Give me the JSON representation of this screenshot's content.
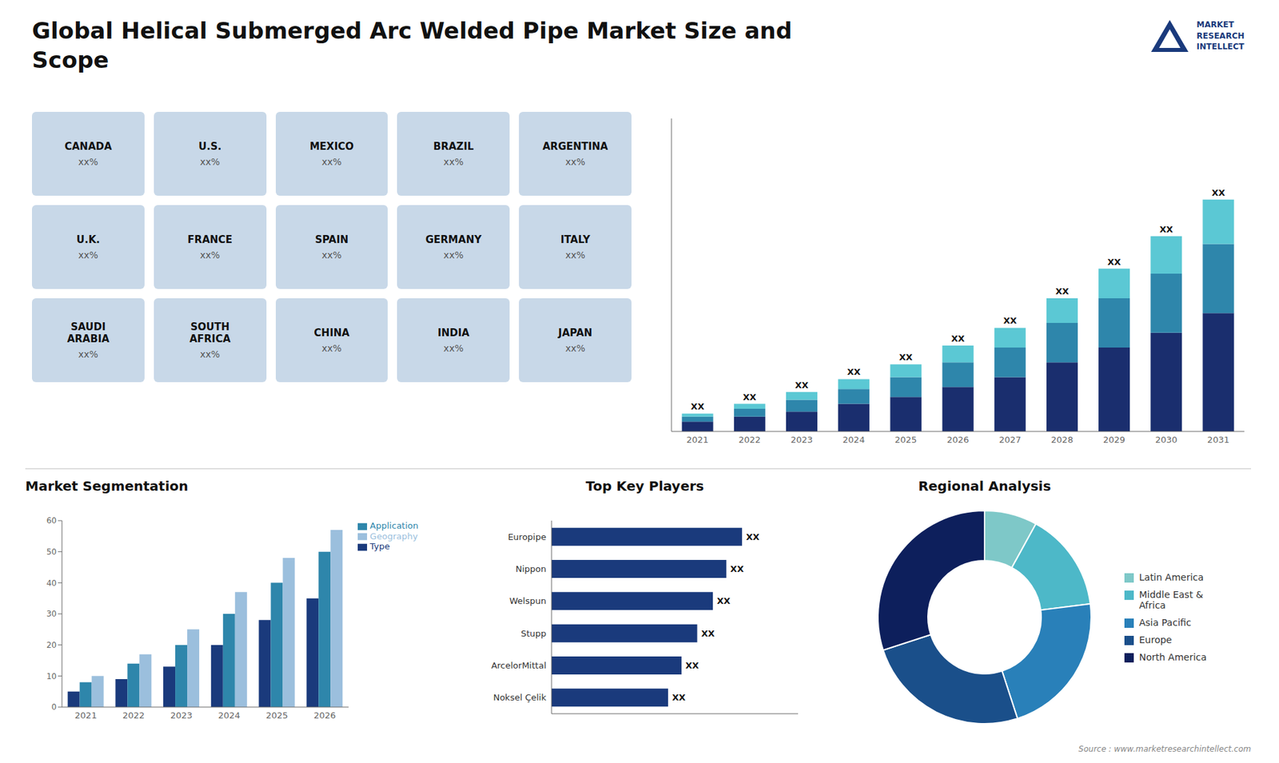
{
  "chart_data": [
    {
      "type": "map",
      "title": "Global Helical Submerged Arc Welded Pipe Market Size and\nScope",
      "categories": [
        "CANADA",
        "U.S.",
        "MEXICO",
        "BRAZIL",
        "ARGENTINA",
        "U.K.",
        "FRANCE",
        "SPAIN",
        "GERMANY",
        "ITALY",
        "SAUDI\nARABIA",
        "SOUTH\nAFRICA",
        "CHINA",
        "INDIA",
        "JAPAN"
      ],
      "value_labels": [
        "xx%",
        "xx%",
        "xx%",
        "xx%",
        "xx%",
        "xx%",
        "xx%",
        "xx%",
        "xx%",
        "xx%",
        "xx%",
        "xx%",
        "xx%",
        "xx%",
        "xx%"
      ],
      "annotations": [
        "MARKET\nRESEARCH\nINTELLECT",
        "Source : www.marketresearchintellect.com"
      ]
    },
    {
      "type": "bar",
      "stacked": true,
      "categories": [
        "2021",
        "2022",
        "2023",
        "2024",
        "2025",
        "2026",
        "2027",
        "2028",
        "2029",
        "2030",
        "2031"
      ],
      "series": [
        {
          "color": "#1a2e6e",
          "values": [
            1,
            1.5,
            2,
            2.8,
            3.5,
            4.5,
            5.5,
            7,
            8.5,
            10,
            12
          ]
        },
        {
          "color": "#2e86ab",
          "values": [
            0.5,
            0.8,
            1.2,
            1.5,
            2,
            2.5,
            3,
            4,
            5,
            6,
            7
          ]
        },
        {
          "color": "#5bc8d4",
          "values": [
            0.3,
            0.5,
            0.8,
            1,
            1.3,
            1.7,
            2,
            2.5,
            3,
            3.8,
            4.5
          ],
          "value_labels": [
            "XX",
            "XX",
            "XX",
            "XX",
            "XX",
            "XX",
            "XX",
            "XX",
            "XX",
            "XX",
            "XX"
          ]
        }
      ],
      "ylim": [
        0,
        31.725
      ],
      "tick_labels": "x"
    },
    {
      "type": "bar",
      "title": "Market Segmentation",
      "categories": [
        "2021",
        "2022",
        "2023",
        "2024",
        "2025",
        "2026"
      ],
      "series": [
        {
          "name": "Type",
          "color": "#1a3a7c",
          "values": [
            5,
            9,
            13,
            20,
            28,
            35
          ]
        },
        {
          "name": "Application",
          "color": "#2e86ab",
          "values": [
            8,
            14,
            20,
            30,
            40,
            50
          ]
        },
        {
          "name": "Geography",
          "color": "#9bbfdd",
          "values": [
            10,
            17,
            25,
            37,
            48,
            57
          ]
        }
      ],
      "ylim": [
        0,
        60
      ],
      "yticks": [
        0,
        10,
        20,
        30,
        40,
        50,
        60
      ],
      "legend": "right"
    },
    {
      "type": "bar",
      "orientation": "horizontal",
      "title": "Top Key Players",
      "categories": [
        "Europipe",
        "Nippon",
        "Welspun",
        "Stupp",
        "ArcelorMittal",
        "Noksel Çelik"
      ],
      "values": [
        0.85,
        0.78,
        0.72,
        0.65,
        0.58,
        0.52
      ],
      "value_labels": [
        "XX",
        "XX",
        "XX",
        "XX",
        "XX",
        "XX"
      ],
      "color": "#1a3a7c",
      "xlim": [
        0,
        1.1
      ],
      "tick_labels": "y"
    },
    {
      "type": "pie",
      "title": "Regional Analysis",
      "categories": [
        "Latin America",
        "Middle East &\nAfrica",
        "Asia Pacific",
        "Europe",
        "North America"
      ],
      "values": [
        8,
        15,
        22,
        25,
        30
      ],
      "colors": [
        "#7ec8c8",
        "#4db8c8",
        "#2980b9",
        "#1a4f8a",
        "#0d1f5c"
      ],
      "legend": "right"
    }
  ]
}
